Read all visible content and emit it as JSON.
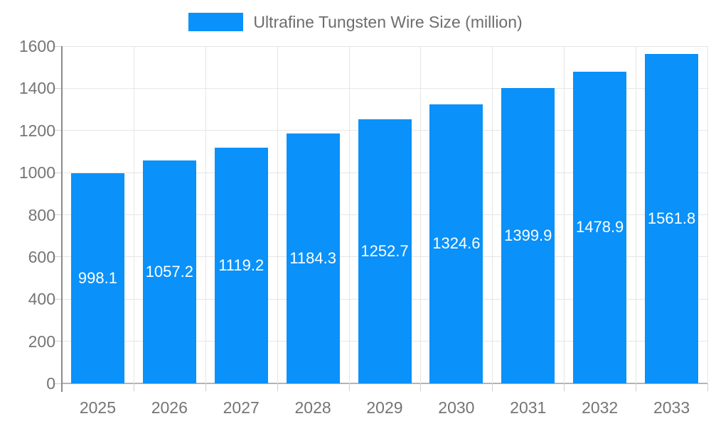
{
  "chart_data": {
    "type": "bar",
    "legend_entries": [
      "Ultrafine Tungsten Wire Size (million)"
    ],
    "legend_position": "top",
    "categories": [
      "2025",
      "2026",
      "2027",
      "2028",
      "2029",
      "2030",
      "2031",
      "2032",
      "2033"
    ],
    "values": [
      998.1,
      1057.2,
      1119.2,
      1184.3,
      1252.7,
      1324.6,
      1399.9,
      1478.9,
      1561.8
    ],
    "data_labels": [
      "998.1",
      "1057.2",
      "1119.2",
      "1184.3",
      "1252.7",
      "1324.6",
      "1399.9",
      "1478.9",
      "1561.8"
    ],
    "xlabel": "",
    "ylabel": "",
    "ylim": [
      0,
      1600
    ],
    "ytick_interval": 200,
    "yticks": [
      0,
      200,
      400,
      600,
      800,
      1000,
      1200,
      1400,
      1600
    ],
    "grid": true,
    "colors": {
      "bar": "#0A91FA",
      "grid_line": "#e6e6e6",
      "baseline": "#b3b3b3",
      "y_axis_line": "#8a8a8a",
      "tick": "#cfcfcf",
      "axis_text": "#757575",
      "legend_text": "#6d6d6d",
      "bar_label_text": "#ffffff",
      "background": "#ffffff"
    }
  }
}
